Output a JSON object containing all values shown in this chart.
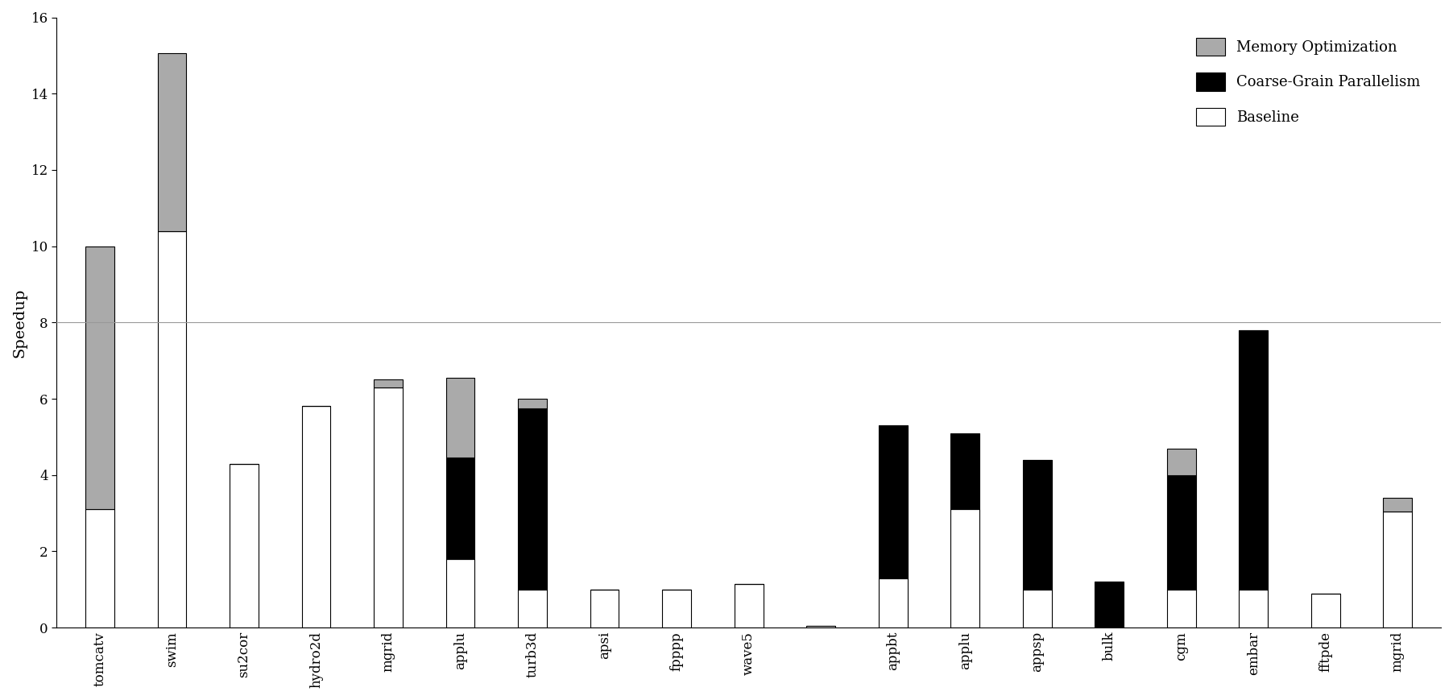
{
  "categories": [
    "tomcatv",
    "swim",
    "su2cor",
    "hydro2d",
    "mgrid",
    "applu",
    "turb3d",
    "apsi",
    "fpppp",
    "wave5",
    "",
    "appbt",
    "applu",
    "appsp",
    "bulk",
    "cgm",
    "embar",
    "fftpde",
    "mgrid"
  ],
  "baseline": [
    3.1,
    10.4,
    4.3,
    5.8,
    6.3,
    1.8,
    1.0,
    1.0,
    1.0,
    1.15,
    0.05,
    1.3,
    3.1,
    1.0,
    0.0,
    1.0,
    1.0,
    0.9,
    3.05
  ],
  "coarse": [
    0.0,
    0.0,
    0.0,
    0.0,
    0.0,
    2.65,
    4.75,
    0.0,
    0.0,
    0.0,
    0.0,
    4.0,
    2.0,
    3.4,
    1.2,
    3.0,
    6.8,
    0.0,
    0.0
  ],
  "memory": [
    6.9,
    4.65,
    0.0,
    0.0,
    0.2,
    2.1,
    0.25,
    0.0,
    0.0,
    0.0,
    0.0,
    0.0,
    0.0,
    0.0,
    0.0,
    0.7,
    0.0,
    0.0,
    0.35
  ],
  "baseline_color": "#ffffff",
  "coarse_color": "#000000",
  "memory_color": "#aaaaaa",
  "bar_edge_color": "#000000",
  "hline_y": 8.0,
  "hline_color": "#999999",
  "ylabel": "Speedup",
  "ylim": [
    0,
    16
  ],
  "yticks": [
    0,
    2,
    4,
    6,
    8,
    10,
    12,
    14,
    16
  ],
  "legend_labels": [
    "Memory Optimization",
    "Coarse-Grain Parallelism",
    "Baseline"
  ],
  "legend_colors": [
    "#aaaaaa",
    "#000000",
    "#ffffff"
  ],
  "figsize": [
    18.04,
    8.69
  ],
  "dpi": 100,
  "bar_width": 0.4
}
